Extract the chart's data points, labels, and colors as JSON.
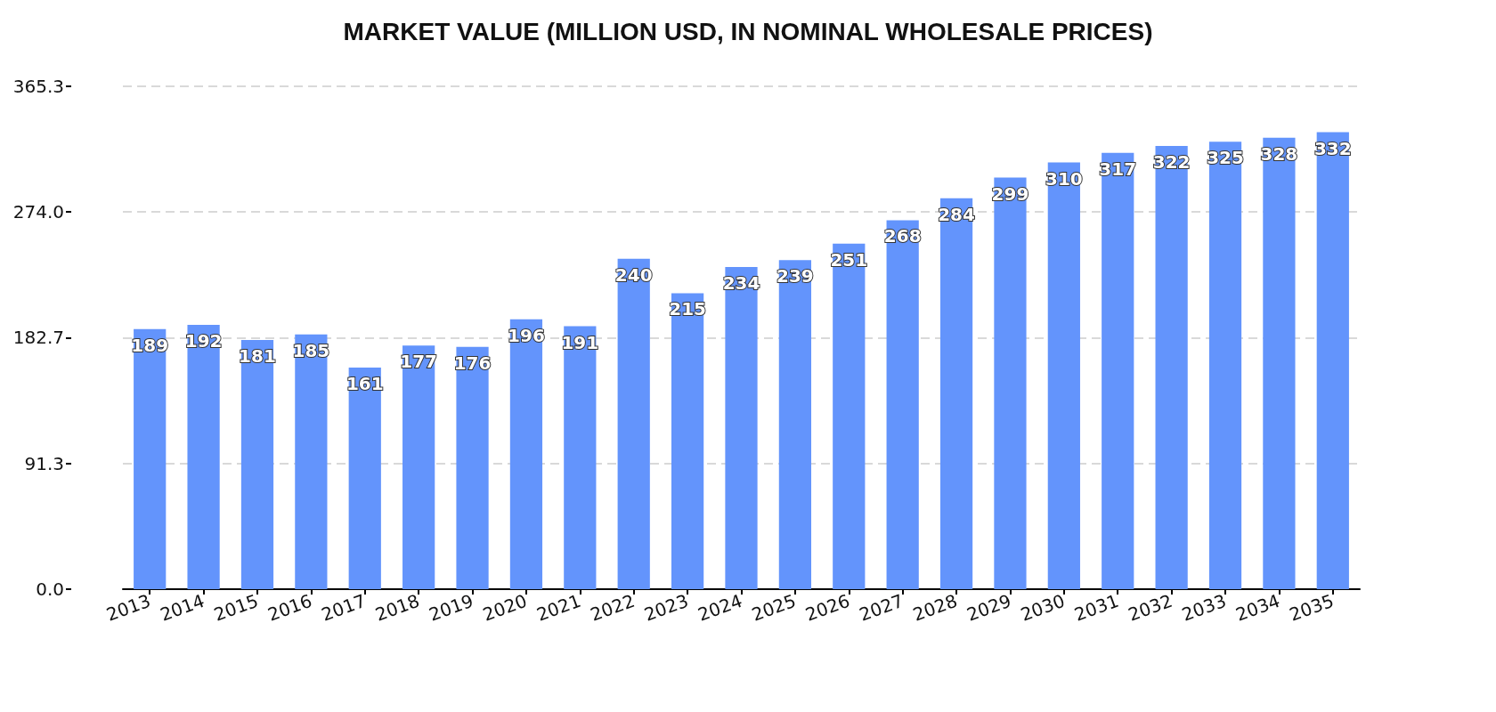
{
  "chart_data": {
    "type": "bar",
    "title": "MARKET VALUE (MILLION USD, IN NOMINAL WHOLESALE PRICES)",
    "categories": [
      "2013",
      "2014",
      "2015",
      "2016",
      "2017",
      "2018",
      "2019",
      "2020",
      "2021",
      "2022",
      "2023",
      "2024",
      "2025",
      "2026",
      "2027",
      "2028",
      "2029",
      "2030",
      "2031",
      "2032",
      "2033",
      "2034",
      "2035"
    ],
    "values": [
      189,
      192,
      181,
      185,
      161,
      177,
      176,
      196,
      191,
      240,
      215,
      234,
      239,
      251,
      268,
      284,
      299,
      310,
      317,
      322,
      325,
      328,
      332
    ],
    "color": "#6394fc",
    "ylim": [
      0,
      365.3
    ],
    "yticks": [
      {
        "value": 0,
        "label": "0.0"
      },
      91.3,
      182.7,
      {
        "value": 274,
        "label": "274.0"
      },
      365.3
    ],
    "grid": "y",
    "data_labels": true
  }
}
